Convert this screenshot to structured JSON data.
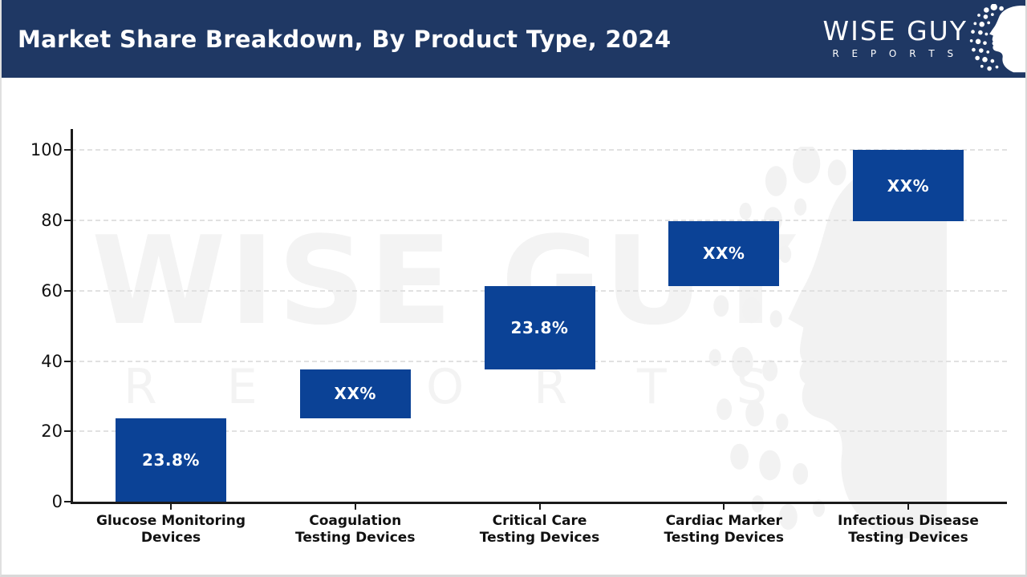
{
  "header": {
    "title": "Market Share Breakdown, By Product Type, 2024",
    "background_color": "#1f3864",
    "logo": {
      "line1": "WISE GUY",
      "line2": "R E P O R T S"
    }
  },
  "watermark": {
    "line1": "WISE GUY",
    "line2": "R E P O R T S"
  },
  "chart_data": {
    "type": "bar",
    "subtype": "waterfall",
    "title": "Market Share Breakdown, By Product Type, 2024",
    "xlabel": "",
    "ylabel": "",
    "ylim": [
      0,
      105
    ],
    "y_ticks": [
      0,
      20,
      40,
      60,
      80,
      100
    ],
    "grid": "horizontal-dashed",
    "legend": "none",
    "bar_color": "#0b4296",
    "bar_label_color": "#ffffff",
    "categories": [
      "Glucose Monitoring\nDevices",
      "Coagulation\nTesting Devices",
      "Critical Care\nTesting Devices",
      "Cardiac Marker\nTesting Devices",
      "Infectious Disease\nTesting Devices"
    ],
    "segments": [
      {
        "category": "Glucose Monitoring\nDevices",
        "start": 0,
        "end": 23.8,
        "label": "23.8%"
      },
      {
        "category": "Coagulation\nTesting Devices",
        "start": 23.8,
        "end": 37.6,
        "label": "XX%"
      },
      {
        "category": "Critical Care\nTesting Devices",
        "start": 37.6,
        "end": 61.4,
        "label": "23.8%"
      },
      {
        "category": "Cardiac Marker\nTesting Devices",
        "start": 61.4,
        "end": 79.8,
        "label": "XX%"
      },
      {
        "category": "Infectious Disease\nTesting Devices",
        "start": 79.8,
        "end": 100,
        "label": "XX%"
      }
    ]
  }
}
